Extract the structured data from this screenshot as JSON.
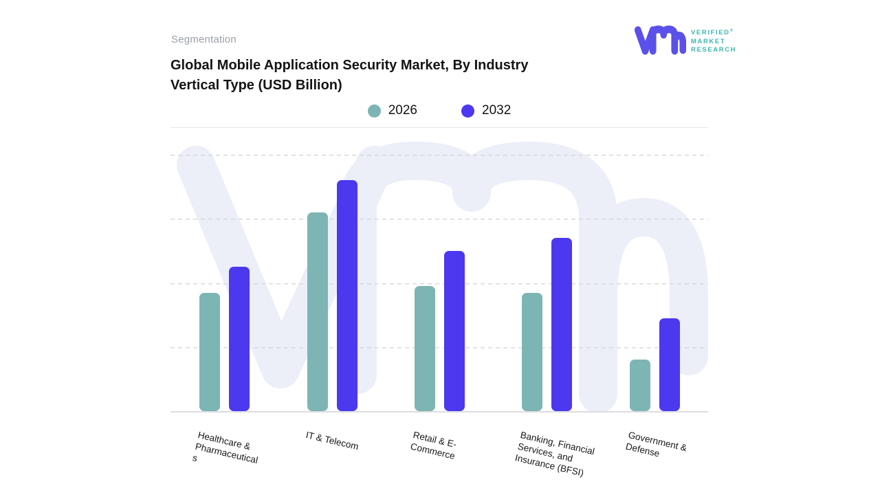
{
  "header": {
    "eyebrow": "Segmentation",
    "title_line1": "Global Mobile Application Security Market, By Industry",
    "title_line2": "Vertical Type (USD Billion)"
  },
  "brand": {
    "name_line1": "VERIFIED",
    "name_line2": "MARKET",
    "name_line3": "RESEARCH",
    "registered_symbol": "®",
    "mark_color": "#5B50E9",
    "text_color": "#3EB5AE"
  },
  "watermark": {
    "label": "vmr-logo-watermark",
    "color": "#ECEEF8"
  },
  "chart_data": {
    "type": "bar",
    "title": "Global Mobile Application Security Market, By Industry Vertical Type (USD Billion)",
    "unit": "USD Billion",
    "categories": [
      "Healthcare &\nPharmaceutical\ns",
      "IT & Telecom",
      "Retail & E-\nCommerce",
      "Banking, Financial\nServices, and\nInsurance (BFSI)",
      "Government &\nDefense"
    ],
    "series": [
      {
        "name": "2026",
        "color": "#7DB5B4",
        "values": [
          1.85,
          3.1,
          1.95,
          1.85,
          0.8
        ]
      },
      {
        "name": "2032",
        "color": "#4B38EF",
        "values": [
          2.25,
          3.6,
          2.5,
          2.7,
          1.45
        ]
      }
    ],
    "ylim": [
      0,
      4.42
    ],
    "gridline_values": [
      1,
      2,
      3,
      4
    ],
    "grid_style": "horizontal dashed",
    "y_axis_labels_visible": false,
    "legend_position": "top center",
    "x_tick_rotation_deg": 13
  }
}
